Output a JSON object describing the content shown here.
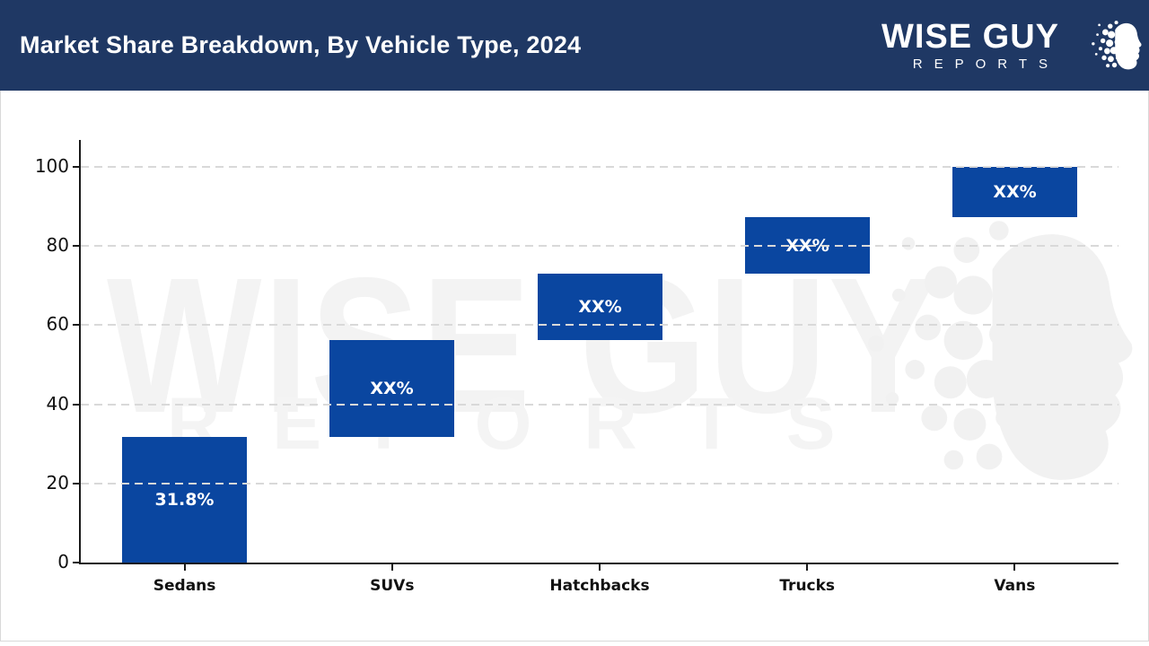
{
  "header": {
    "title": "Market Share Breakdown, By Vehicle Type, 2024",
    "bg_color": "#1f3864",
    "logo": {
      "line1": "WISE GUY",
      "line2": "REPORTS"
    }
  },
  "watermark": {
    "line1": "WISE GUY",
    "line2": "REPORTS"
  },
  "chart_data": {
    "type": "bar",
    "subtype": "waterfall",
    "title": "Market Share Breakdown, By Vehicle Type, 2024",
    "categories": [
      "Sedans",
      "SUVs",
      "Hatchbacks",
      "Trucks",
      "Vans"
    ],
    "segments": [
      {
        "category": "Sedans",
        "start": 0,
        "end": 31.8,
        "label": "31.8%"
      },
      {
        "category": "SUVs",
        "start": 31.8,
        "end": 56.2,
        "label": "XX%"
      },
      {
        "category": "Hatchbacks",
        "start": 56.2,
        "end": 73.0,
        "label": "XX%"
      },
      {
        "category": "Trucks",
        "start": 73.0,
        "end": 87.2,
        "label": "XX%"
      },
      {
        "category": "Vans",
        "start": 87.2,
        "end": 100.0,
        "label": "XX%"
      }
    ],
    "xlabel": "",
    "ylabel": "",
    "yticks": [
      0,
      20,
      40,
      60,
      80,
      100
    ],
    "ylim": [
      0,
      106
    ],
    "grid": "horizontal-dashed",
    "bar_color": "#0a46a0",
    "grid_color": "#d9d9d9",
    "legend": "none"
  }
}
